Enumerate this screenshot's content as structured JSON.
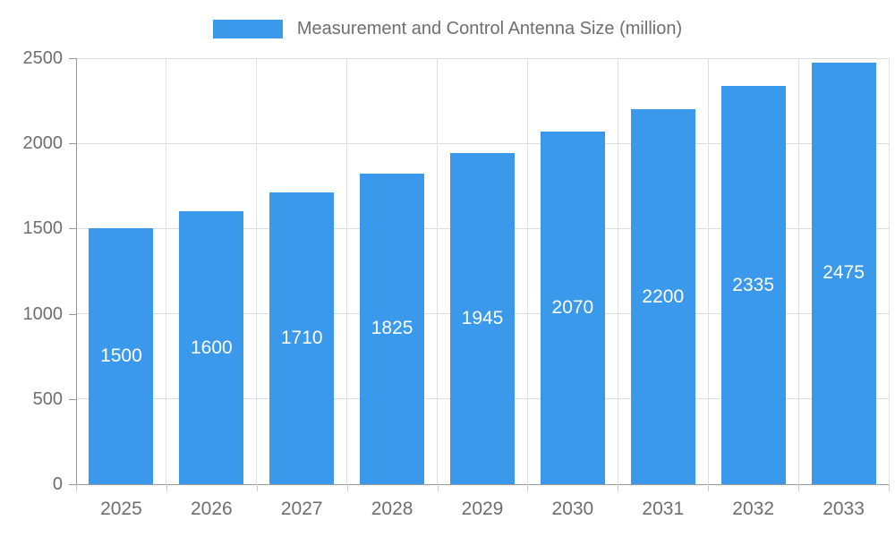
{
  "legend": {
    "label": "Measurement and Control Antenna Size (million)"
  },
  "colors": {
    "bar": "#3B99EC",
    "grid_h": "#DDDDDD",
    "grid_v": "#E0E0E0",
    "axis": "#999999",
    "text": "#6E6E6E",
    "value_label": "#FFFFFF",
    "background": "#FFFFFF"
  },
  "chart_data": {
    "type": "bar",
    "title": "Measurement and Control Antenna Size (million)",
    "categories": [
      "2025",
      "2026",
      "2027",
      "2028",
      "2029",
      "2030",
      "2031",
      "2032",
      "2033"
    ],
    "values": [
      1500,
      1600,
      1710,
      1825,
      1945,
      2070,
      2200,
      2335,
      2475
    ],
    "value_labels": [
      "1500",
      "1600",
      "1710",
      "1825",
      "1945",
      "2070",
      "2200",
      "2335",
      "2475"
    ],
    "xlabel": "",
    "ylabel": "",
    "ylim": [
      0,
      2500
    ],
    "yticks": [
      0,
      500,
      1000,
      1500,
      2000,
      2500
    ],
    "ytick_labels": [
      "0",
      "500",
      "1000",
      "1500",
      "2000",
      "2500"
    ],
    "grid": true,
    "legend_position": "top-center",
    "value_labels_position": "inside-center"
  }
}
